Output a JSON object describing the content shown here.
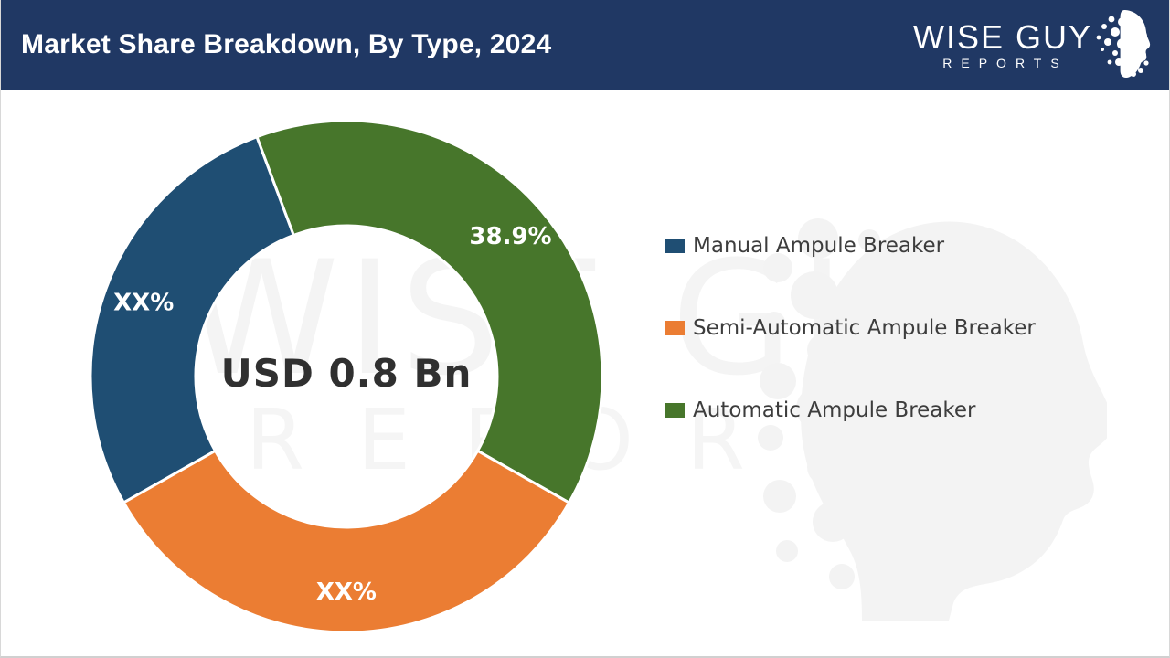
{
  "header": {
    "title": "Market Share Breakdown, By Type, 2024",
    "bg_color": "#203864",
    "logo": {
      "line1": "WISE GUY",
      "line2": "REPORTS"
    }
  },
  "watermark": {
    "line1": "WISE GUY",
    "line2": "REPORTS"
  },
  "chart_data": {
    "type": "pie",
    "subtype": "donut",
    "title": "Market Share Breakdown, By Type, 2024",
    "center_label": "USD 0.8 Bn",
    "units": "percent of market share",
    "start_angle_deg": -20.5,
    "direction": "clockwise",
    "inner_radius_ratio": 0.59,
    "segments": [
      {
        "name": "Automatic Ampule Breaker",
        "value_pct": 38.9,
        "label": "38.9%",
        "color": "#47762B"
      },
      {
        "name": "Semi-Automatic Ampule Breaker",
        "value_pct": 33.6,
        "label": "XX%",
        "color": "#EB7D33"
      },
      {
        "name": "Manual Ampule Breaker",
        "value_pct": 27.5,
        "label": "XX%",
        "color": "#1F4E73"
      }
    ],
    "legend_position": "right",
    "legend": [
      {
        "label": "Manual Ampule Breaker",
        "color": "#1F4E73"
      },
      {
        "label": "Semi-Automatic Ampule Breaker",
        "color": "#EB7D33"
      },
      {
        "label": "Automatic Ampule Breaker",
        "color": "#47762B"
      }
    ]
  }
}
